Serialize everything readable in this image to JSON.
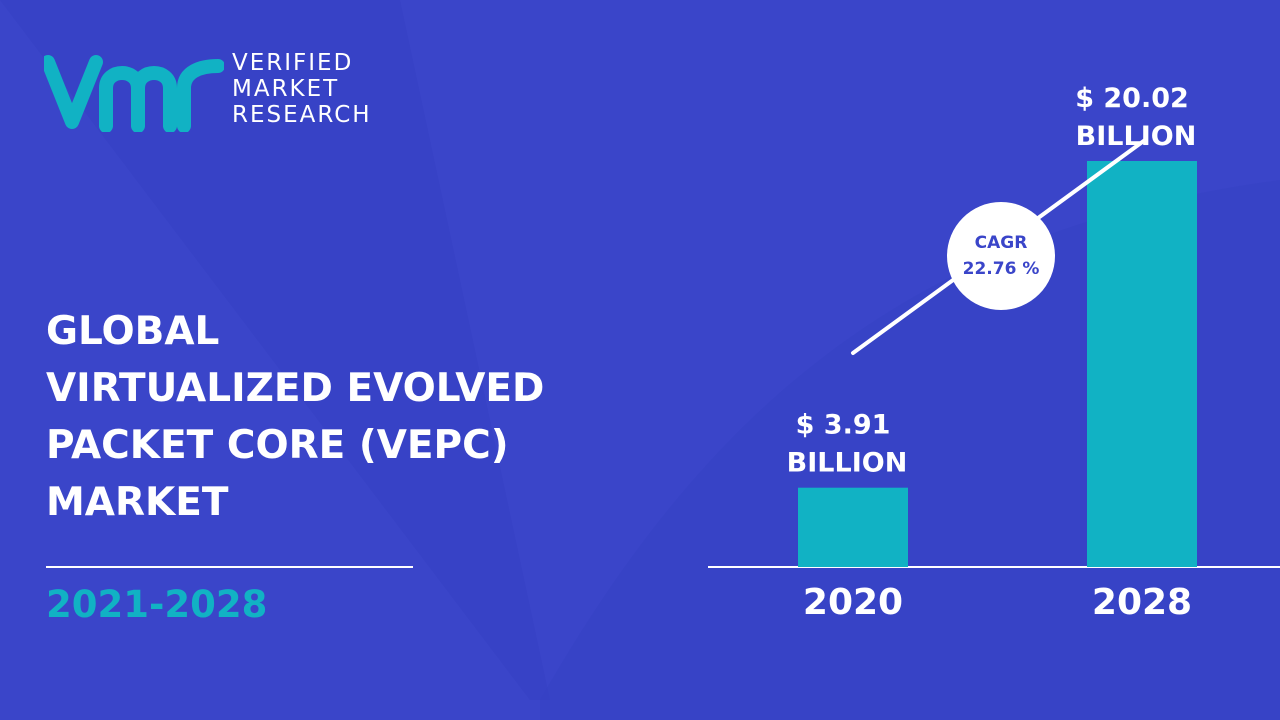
{
  "brand": {
    "logo_mark": "vmr",
    "line1": "VERIFIED",
    "line2": "MARKET",
    "line3": "RESEARCH"
  },
  "title_lines": [
    "GLOBAL",
    "VIRTUALIZED EVOLVED",
    "PACKET CORE (VEPC)",
    "MARKET"
  ],
  "period": "2021-2028",
  "colors": {
    "background": "#3a45c9",
    "accent": "#11b2c4",
    "text": "#ffffff",
    "cagr_text": "#3a45c9"
  },
  "chart_data": {
    "type": "bar",
    "categories": [
      "2020",
      "2028"
    ],
    "values": [
      3.91,
      20.02
    ],
    "value_labels": [
      [
        "$ 3.91",
        "BILLION"
      ],
      [
        "$ 20.02",
        "BILLION"
      ]
    ],
    "cagr": {
      "label": "CAGR",
      "value": "22.76 %"
    },
    "ylim": [
      0,
      25
    ]
  }
}
